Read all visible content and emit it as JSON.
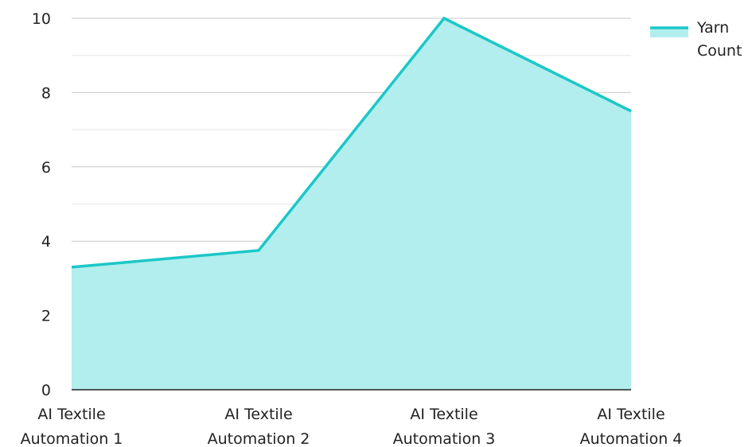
{
  "chart_data": {
    "type": "area",
    "categories": [
      [
        "AI Textile",
        "Automation 1"
      ],
      [
        "AI Textile",
        "Automation 2"
      ],
      [
        "AI Textile",
        "Automation 3"
      ],
      [
        "AI Textile",
        "Automation 4"
      ]
    ],
    "series": [
      {
        "name": [
          "Yarn",
          "Count"
        ],
        "values": [
          3.3,
          3.75,
          10,
          7.5
        ],
        "line_color": "#1cc7c7",
        "fill_color": "#b2eeee"
      }
    ],
    "ylim": [
      0,
      10
    ],
    "yticks": [
      0,
      2,
      4,
      6,
      8,
      10
    ],
    "grid": true,
    "minor_grid": true,
    "legend_position": "top-right"
  }
}
